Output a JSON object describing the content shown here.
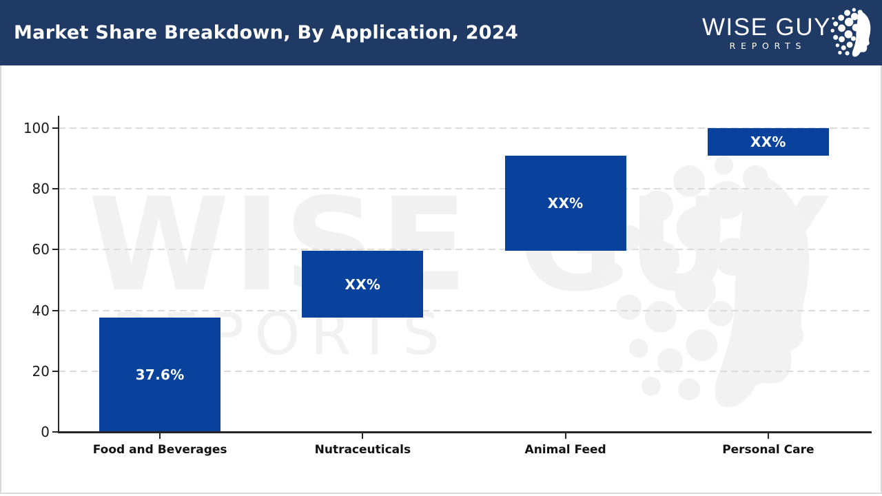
{
  "header": {
    "title": "Market Share Breakdown, By Application, 2024",
    "logo": {
      "name": "WISE GUY",
      "sub": "REPORTS"
    }
  },
  "watermark": {
    "line1": "WISE GUY",
    "line2": "REPORTS"
  },
  "chart_data": {
    "type": "bar",
    "subtype": "waterfall",
    "title": "Market Share Breakdown, By Application, 2024",
    "categories": [
      "Food and Beverages",
      "Nutraceuticals",
      "Animal Feed",
      "Personal Care"
    ],
    "segments": [
      {
        "category": "Food and Beverages",
        "start": 0,
        "end": 37.6,
        "label": "37.6%"
      },
      {
        "category": "Nutraceuticals",
        "start": 37.6,
        "end": 59.6,
        "label": "XX%"
      },
      {
        "category": "Animal Feed",
        "start": 59.6,
        "end": 90.9,
        "label": "XX%"
      },
      {
        "category": "Personal Care",
        "start": 90.9,
        "end": 100,
        "label": "XX%"
      }
    ],
    "yticks": [
      0,
      20,
      40,
      60,
      80,
      100
    ],
    "ylim": [
      0,
      104
    ],
    "xlabel": "",
    "ylabel": "",
    "grid": "horizontal-dashed",
    "legend_position": "none",
    "bar_color": "#08429c",
    "value_label_color": "#ffffff"
  },
  "colors": {
    "header_bg": "#203a66",
    "bar": "#08429c",
    "grid": "#dcdcdc",
    "axis": "#262626",
    "watermark": "#f1f1f1",
    "frame": "#d9d9d9"
  }
}
